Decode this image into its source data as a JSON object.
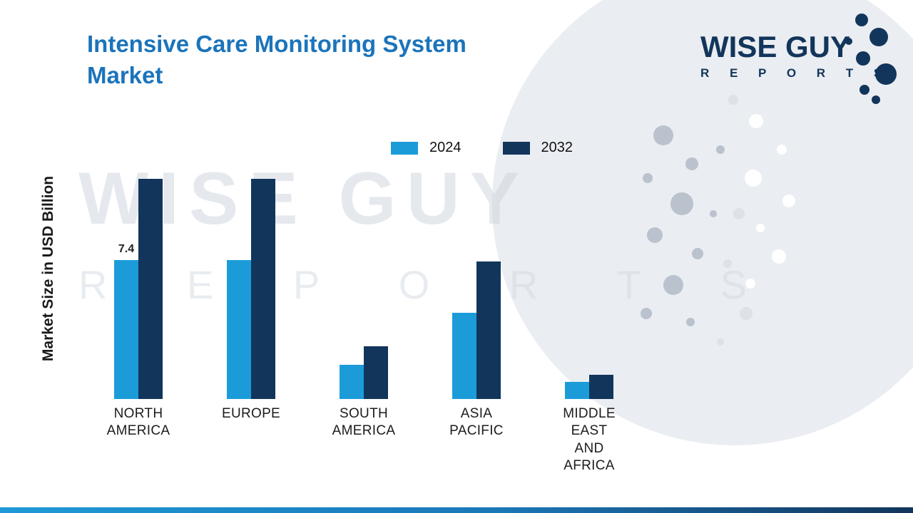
{
  "logo": {
    "line1": "WISE GUY",
    "line2": "R E P O R T S"
  },
  "watermark": {
    "line1": "WISE GUY",
    "line2": "R E P O R T S"
  },
  "chart_data": {
    "type": "bar",
    "title": "Intensive Care Monitoring System Market",
    "ylabel": "Market Size in USD Billion",
    "ylim": [
      0,
      12.5
    ],
    "grid": false,
    "legend_position": "top-center",
    "categories": [
      "NORTH AMERICA",
      "EUROPE",
      "SOUTH AMERICA",
      "ASIA PACIFIC",
      "MIDDLE EAST AND AFRICA"
    ],
    "category_label_lines": [
      [
        "NORTH",
        "AMERICA"
      ],
      [
        "EUROPE"
      ],
      [
        "SOUTH",
        "AMERICA"
      ],
      [
        "ASIA",
        "PACIFIC"
      ],
      [
        "MIDDLE",
        "EAST",
        "AND",
        "AFRICA"
      ]
    ],
    "series": [
      {
        "name": "2024",
        "color": "#1b9cd9",
        "values": [
          7.4,
          7.4,
          1.8,
          4.6,
          0.9
        ]
      },
      {
        "name": "2032",
        "color": "#12355b",
        "values": [
          11.7,
          11.7,
          2.8,
          7.3,
          1.3
        ]
      }
    ],
    "annotations": [
      {
        "series": 0,
        "category": 0,
        "text": "7.4"
      }
    ]
  },
  "colors": {
    "title": "#1b74bb",
    "series_2024": "#1b9cd9",
    "series_2032": "#12355b",
    "watermark": "#cdd5df",
    "background_circle": "#eaedf1"
  }
}
